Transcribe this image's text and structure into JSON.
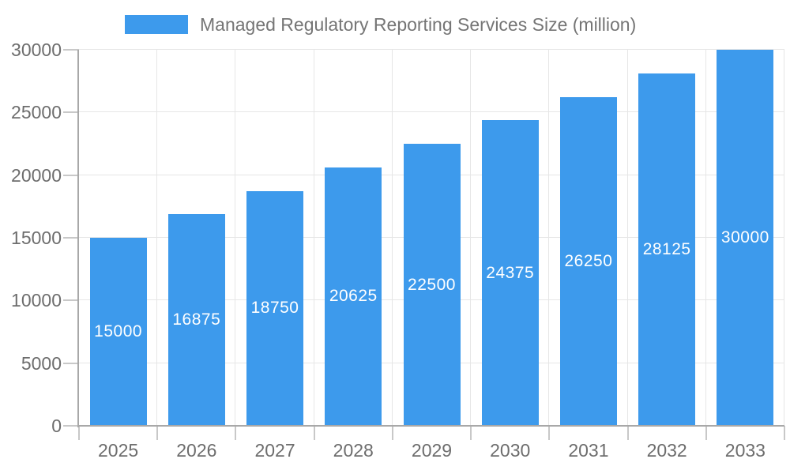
{
  "chart_data": {
    "type": "bar",
    "title": "",
    "legend": "Managed Regulatory Reporting Services Size (million)",
    "legend_position": "top",
    "categories": [
      "2025",
      "2026",
      "2027",
      "2028",
      "2029",
      "2030",
      "2031",
      "2032",
      "2033"
    ],
    "values": [
      15000,
      16875,
      18750,
      20625,
      22500,
      24375,
      26250,
      28125,
      30000
    ],
    "xlabel": "",
    "ylabel": "",
    "ylim": [
      0,
      30000
    ],
    "y_ticks": [
      0,
      5000,
      10000,
      15000,
      20000,
      25000,
      30000
    ],
    "grid": true,
    "value_labels": "inside-center",
    "colors": {
      "bar": "#3D9AEC",
      "bar_label": "#FFFFFF",
      "gridline": "#E6E6E6",
      "axis_line": "#A8A8A8",
      "tick_line": "#C8C8C8",
      "axis_text": "#6D6D6D",
      "legend_text": "#757575",
      "background": "#FFFFFF"
    }
  }
}
